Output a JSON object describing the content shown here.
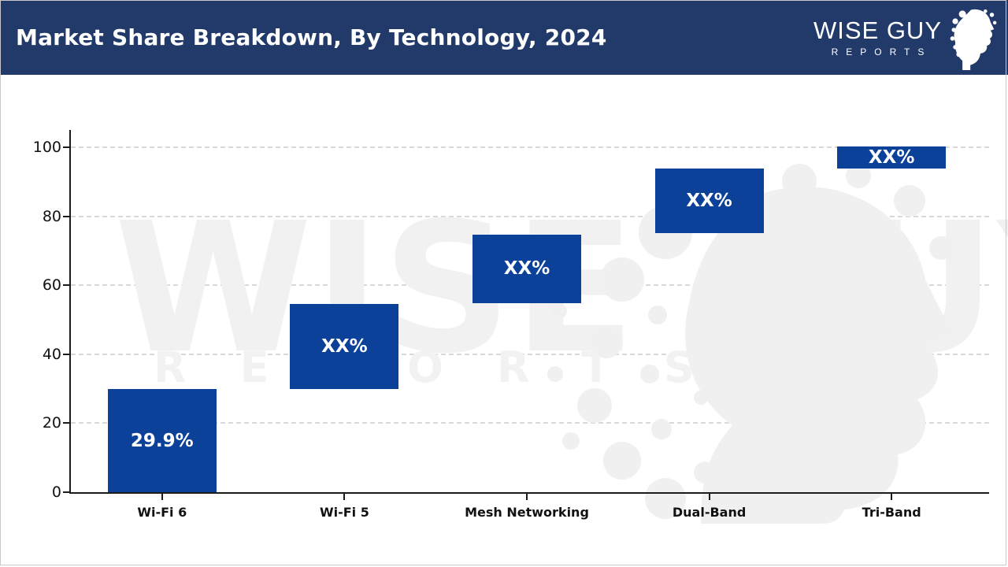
{
  "header": {
    "title": "Market Share Breakdown, By Technology, 2024",
    "logo": {
      "line1": "WISE GUY",
      "line2": "REPORTS"
    }
  },
  "watermark": {
    "line1": "WISE GUY",
    "line2": "REPORTS"
  },
  "colors": {
    "header_bg": "#213a69",
    "bar_color": "#0b4199",
    "grid_color": "#d9d9d9",
    "axis_color": "#1c1c1c",
    "watermark_color": "#f1f1f1"
  },
  "chart_data": {
    "type": "bar",
    "subtype": "waterfall-floating-bars",
    "title": "Market Share Breakdown, By Technology, 2024",
    "categories": [
      "Wi-Fi 6",
      "Wi-Fi 5",
      "Mesh Networking",
      "Dual-Band",
      "Tri-Band"
    ],
    "segments": [
      {
        "category": "Wi-Fi 6",
        "start": 0,
        "end": 29.9,
        "value_label": "29.9%"
      },
      {
        "category": "Wi-Fi 5",
        "start": 29.9,
        "end": 54.6,
        "value_label": "XX%"
      },
      {
        "category": "Mesh Networking",
        "start": 54.8,
        "end": 74.7,
        "value_label": "XX%"
      },
      {
        "category": "Dual-Band",
        "start": 75.0,
        "end": 93.9,
        "value_label": "XX%"
      },
      {
        "category": "Tri-Band",
        "start": 93.9,
        "end": 100.3,
        "value_label": "XX%"
      }
    ],
    "y_ticks": [
      0,
      20,
      40,
      60,
      80,
      100
    ],
    "ylim": [
      0,
      105
    ],
    "xlabel": "",
    "ylabel": "",
    "grid": "horizontal-dashed",
    "legend": "none",
    "bar_color": "#0b4199",
    "label_position": "center-inside",
    "label_color": "#ffffff"
  }
}
